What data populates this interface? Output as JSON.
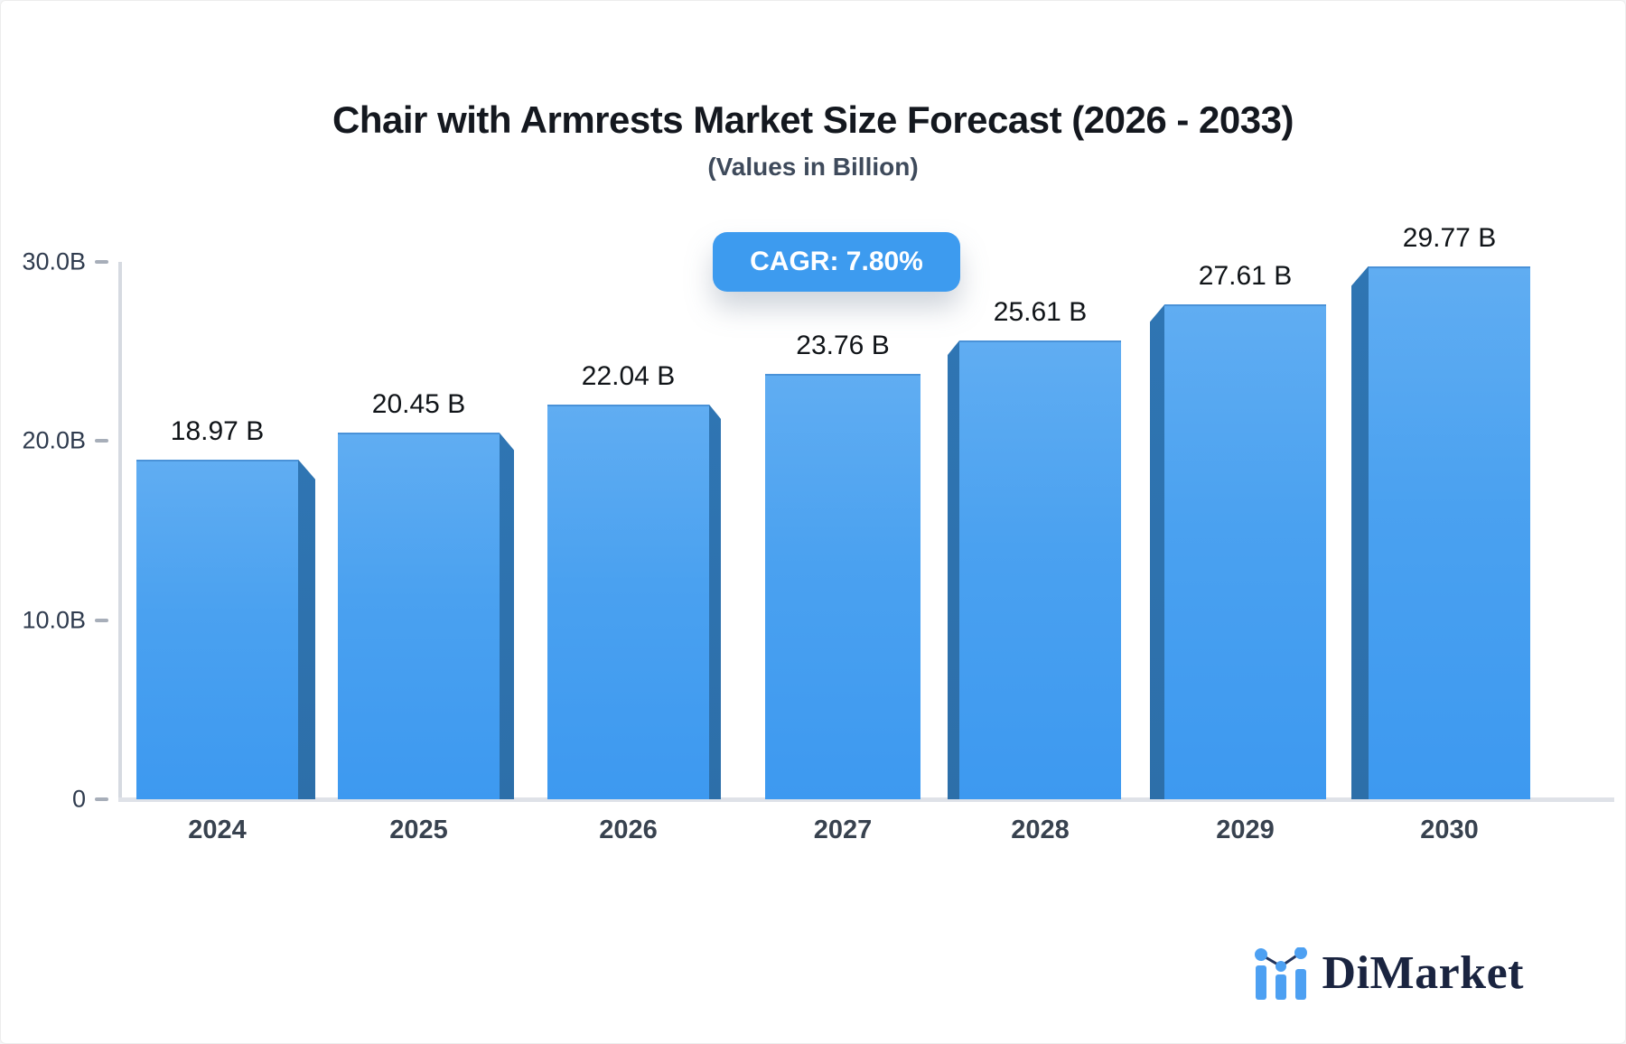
{
  "header": {
    "title": "Chair with Armrests Market Size Forecast (2026 - 2033)",
    "subtitle": "(Values in Billion)",
    "cagr_badge": "CAGR: 7.80%"
  },
  "brand": {
    "name": "DiMarket",
    "icon": "bar-chart-logo-icon"
  },
  "colors": {
    "accent_blue": "#3d99f0",
    "bar_face_top": "#60adf2",
    "bar_face_bottom": "#3d99f0",
    "bar_side": "#2e74b2",
    "badge_bg": "#3d9bef",
    "badge_text": "#ffffff",
    "axis_line": "#d6dae1",
    "tick_text": "#2f3b4e",
    "title_text": "#14181f",
    "logo_navy": "#1a2440"
  },
  "chart_data": {
    "type": "bar",
    "title": "Chair with Armrests Market Size Forecast (2026 - 2033)",
    "subtitle": "(Values in Billion)",
    "categories": [
      "2024",
      "2025",
      "2026",
      "2027",
      "2028",
      "2029",
      "2030"
    ],
    "values": [
      18.97,
      20.45,
      22.04,
      23.76,
      25.61,
      27.61,
      29.77
    ],
    "bar_labels": [
      "18.97 B",
      "20.45 B",
      "22.04 B",
      "23.76 B",
      "25.61 B",
      "27.61 B",
      "29.77 B"
    ],
    "unit": "Billion",
    "cagr_percent": 7.8,
    "xlabel": "",
    "ylabel": "",
    "y_ticks": [
      {
        "value": 30,
        "label": "30.0B"
      },
      {
        "value": 20,
        "label": "20.0B"
      },
      {
        "value": 10,
        "label": "10.0B"
      },
      {
        "value": 0,
        "label": "0"
      }
    ],
    "ylim": [
      0,
      30
    ],
    "grid": false,
    "legend": "none",
    "style": "3d-extruded-bars"
  }
}
